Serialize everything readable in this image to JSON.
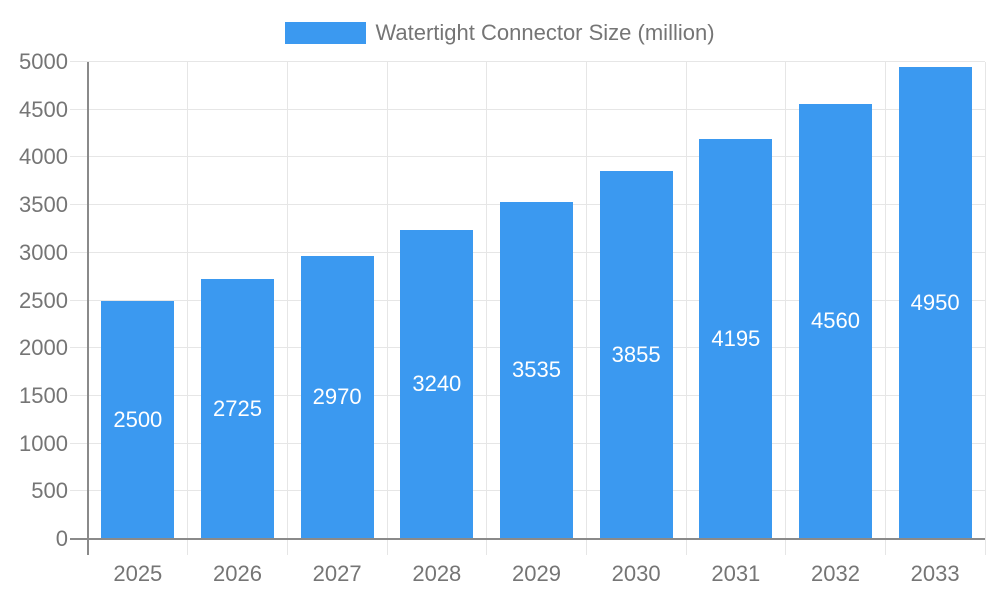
{
  "legend": {
    "label": "Watertight Connector Size (million)"
  },
  "chart_data": {
    "type": "bar",
    "title": "Watertight Connector Size (million)",
    "series_name": "Watertight Connector Size (million)",
    "categories": [
      "2025",
      "2026",
      "2027",
      "2028",
      "2029",
      "2030",
      "2031",
      "2032",
      "2033"
    ],
    "values": [
      2500,
      2725,
      2970,
      3240,
      3535,
      3855,
      4195,
      4560,
      4950
    ],
    "value_labels": [
      "2500",
      "2725",
      "2970",
      "3240",
      "3535",
      "3855",
      "4195",
      "4560",
      "4950"
    ],
    "xlabel": "",
    "ylabel": "",
    "ylim": [
      0,
      5000
    ],
    "yticks": [
      0,
      500,
      1000,
      1500,
      2000,
      2500,
      3000,
      3500,
      4000,
      4500,
      5000
    ],
    "grid": true,
    "legend_position": "top",
    "colors": {
      "bar": "#3B99F0",
      "value_label": "#FFFFFF",
      "axis_label": "#757575",
      "grid_line": "#E6E6E6",
      "axis_line": "#8A8A8A"
    }
  }
}
